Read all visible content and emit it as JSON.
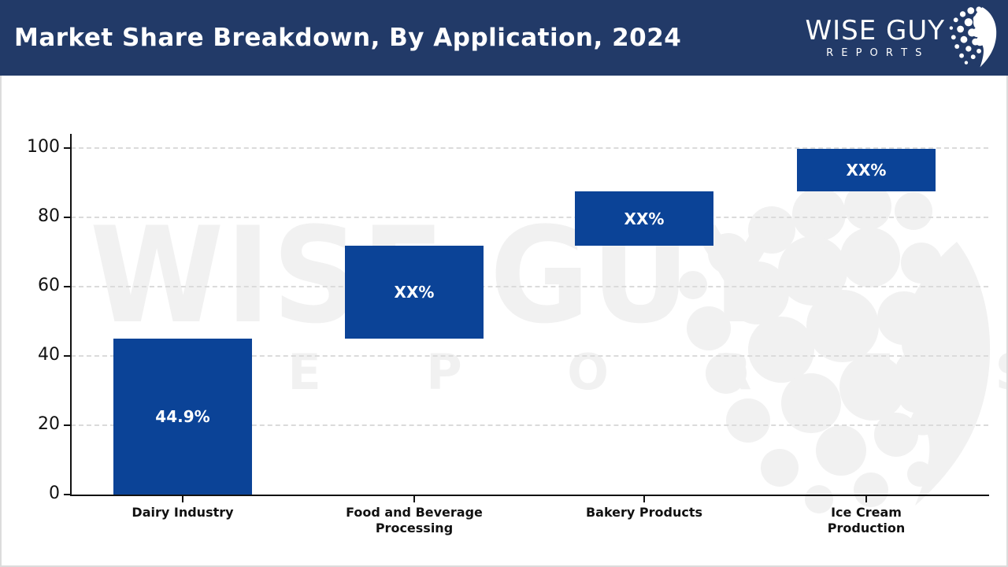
{
  "header": {
    "title": "Market Share Breakdown, By Application, 2024",
    "logo": {
      "line1": "WISE GUY",
      "line2": "R E P O R T S"
    }
  },
  "watermark": {
    "line1": "WISE GUY",
    "line2": "R E P O R T S"
  },
  "colors": {
    "header_bg": "#223a68",
    "bar": "#0b4397",
    "grid": "#dbdbdb",
    "axis": "#111111",
    "watermark": "#f1f1f1",
    "bar_label_text": "#ffffff"
  },
  "chart_data": {
    "type": "bar",
    "subtype": "waterfall-floating-bars",
    "title": "Market Share Breakdown, By Application, 2024",
    "categories": [
      "Dairy Industry",
      "Food and Beverage Processing",
      "Bakery Products",
      "Ice Cream Production"
    ],
    "category_lines": [
      [
        "Dairy Industry"
      ],
      [
        "Food and Beverage",
        "Processing"
      ],
      [
        "Bakery Products"
      ],
      [
        "Ice Cream",
        "Production"
      ]
    ],
    "segments": [
      {
        "category": "Dairy Industry",
        "start": 0,
        "end": 44.9,
        "label": "44.9%"
      },
      {
        "category": "Food and Beverage Processing",
        "start": 44.9,
        "end": 71.8,
        "label": "XX%"
      },
      {
        "category": "Bakery Products",
        "start": 71.8,
        "end": 87.4,
        "label": "XX%"
      },
      {
        "category": "Ice Cream Production",
        "start": 87.4,
        "end": 99.7,
        "label": "XX%"
      }
    ],
    "yticks": [
      0,
      20,
      40,
      60,
      80,
      100
    ],
    "ylim": [
      0,
      104
    ],
    "xlabel": "",
    "ylabel": "",
    "grid": "dashed-horizontal",
    "legend": "none"
  }
}
